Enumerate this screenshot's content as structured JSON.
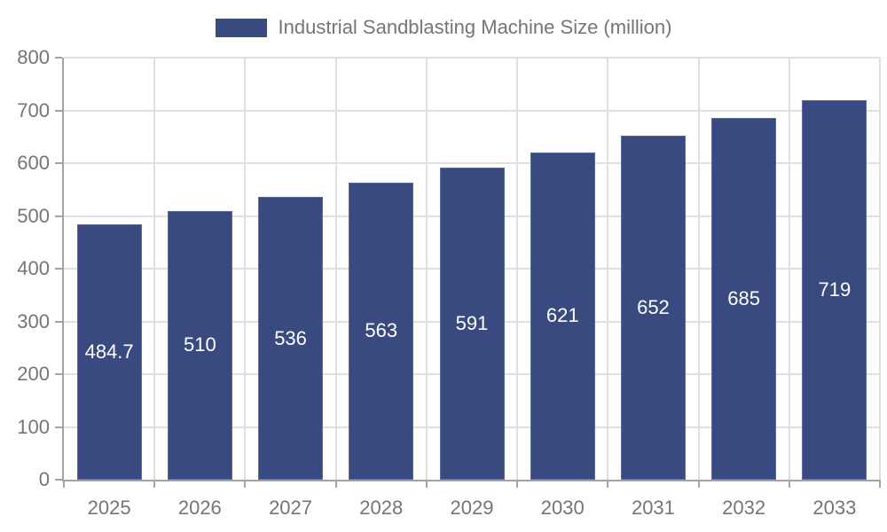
{
  "legend": {
    "label": "Industrial Sandblasting Machine Size (million)"
  },
  "chart_data": {
    "type": "bar",
    "title": "Industrial Sandblasting Machine Size (million)",
    "series_name": "Industrial Sandblasting Machine Size (million)",
    "categories": [
      "2025",
      "2026",
      "2027",
      "2028",
      "2029",
      "2030",
      "2031",
      "2032",
      "2033"
    ],
    "values": [
      484.7,
      510,
      536,
      563,
      591,
      621,
      652,
      685,
      719
    ],
    "value_labels": [
      "484.7",
      "510",
      "536",
      "563",
      "591",
      "621",
      "652",
      "685",
      "719"
    ],
    "xlabel": "",
    "ylabel": "",
    "ylim": [
      0,
      800
    ],
    "yticks": [
      0,
      100,
      200,
      300,
      400,
      500,
      600,
      700,
      800
    ],
    "grid": true,
    "legend_position": "top-center",
    "colors": {
      "bar": "#384a80",
      "bar_edge": "#5c6b9c",
      "value_label": "#ffffff",
      "axis_text": "#757575",
      "grid_line": "#e0e0e0",
      "axis_line": "#a3a3a3",
      "background": "#ffffff"
    }
  }
}
